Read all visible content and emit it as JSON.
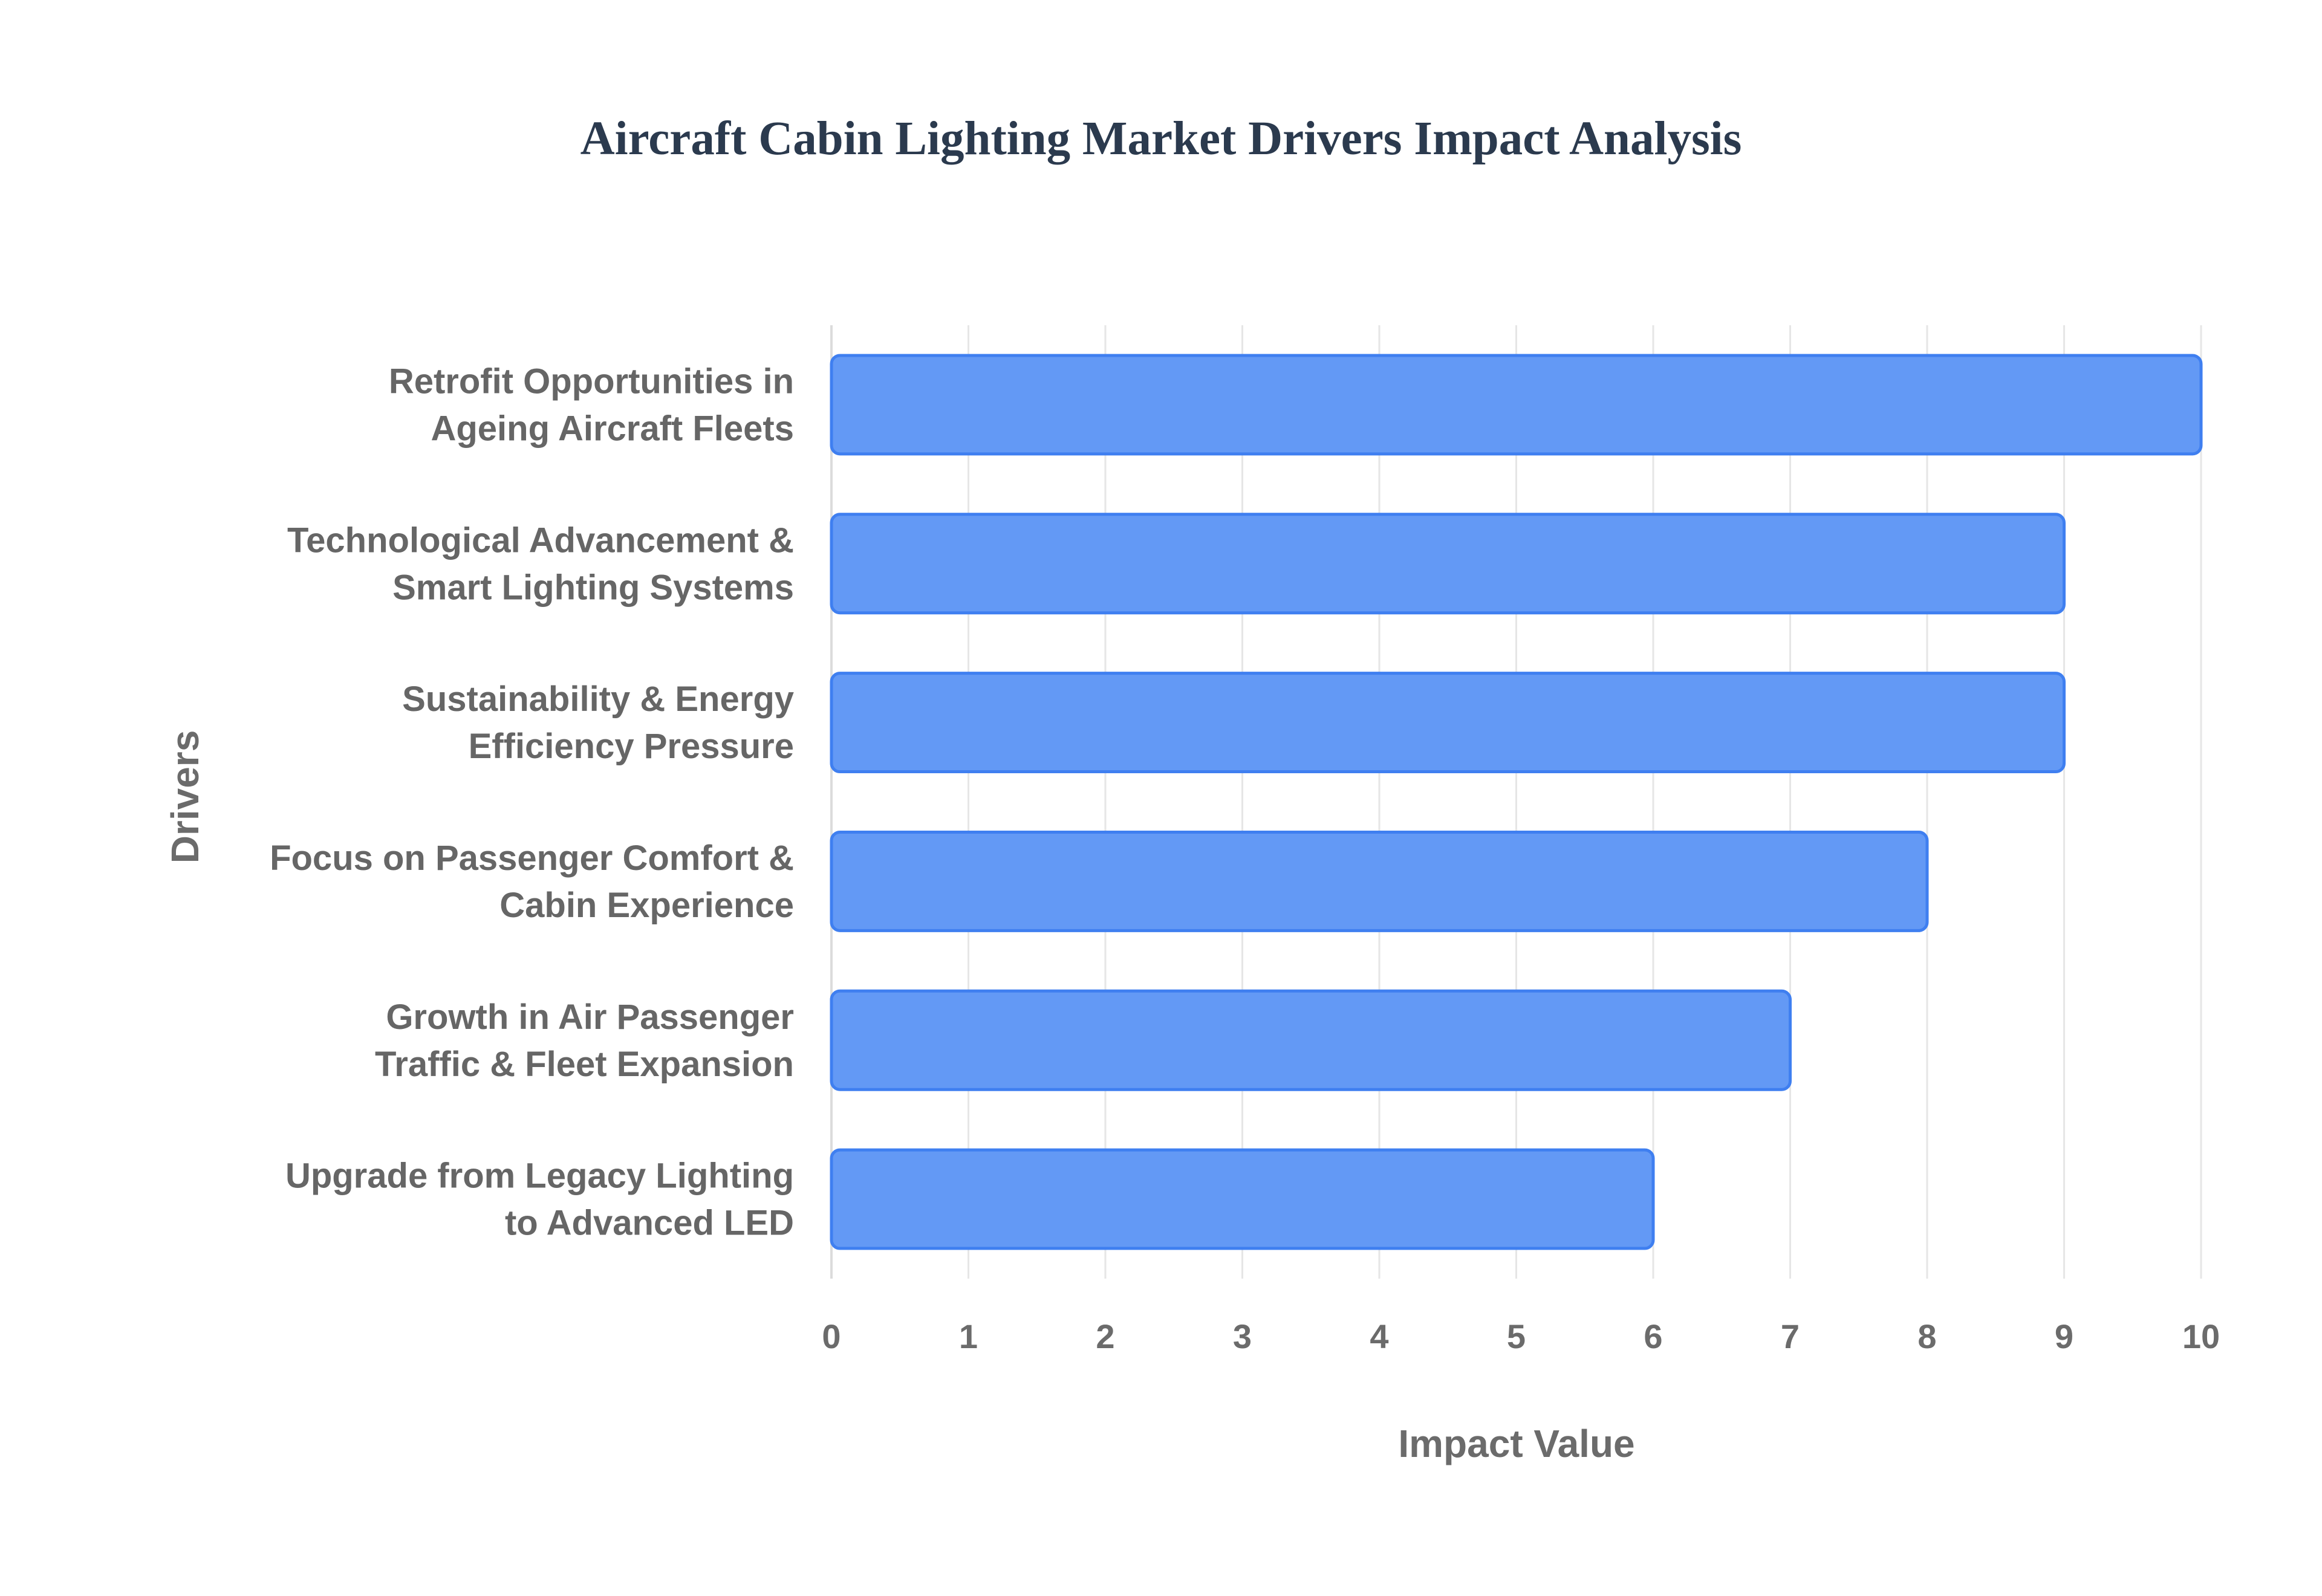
{
  "chart_data": {
    "type": "bar",
    "orientation": "horizontal",
    "title": "Aircraft Cabin Lighting Market Drivers Impact Analysis",
    "xlabel": "Impact Value",
    "ylabel": "Drivers",
    "xlim": [
      0,
      10
    ],
    "xticks": [
      "0",
      "1",
      "2",
      "3",
      "4",
      "5",
      "6",
      "7",
      "8",
      "9",
      "10"
    ],
    "grid": true,
    "categories": [
      [
        "Retrofit Opportunities in",
        "Ageing Aircraft Fleets"
      ],
      [
        "Technological Advancement &",
        "Smart Lighting Systems"
      ],
      [
        "Sustainability & Energy",
        "Efficiency Pressure"
      ],
      [
        "Focus on Passenger Comfort &",
        "Cabin Experience"
      ],
      [
        "Growth in Air Passenger",
        "Traffic & Fleet Expansion"
      ],
      [
        "Upgrade from Legacy Lighting",
        "to Advanced LED"
      ]
    ],
    "values": [
      10,
      9,
      9,
      8,
      7,
      6
    ],
    "colors": {
      "bar_fill": "#6399f5",
      "bar_stroke": "#3f7ff0",
      "grid": "#e6e6e6",
      "axis": "#dcdcdc"
    }
  }
}
